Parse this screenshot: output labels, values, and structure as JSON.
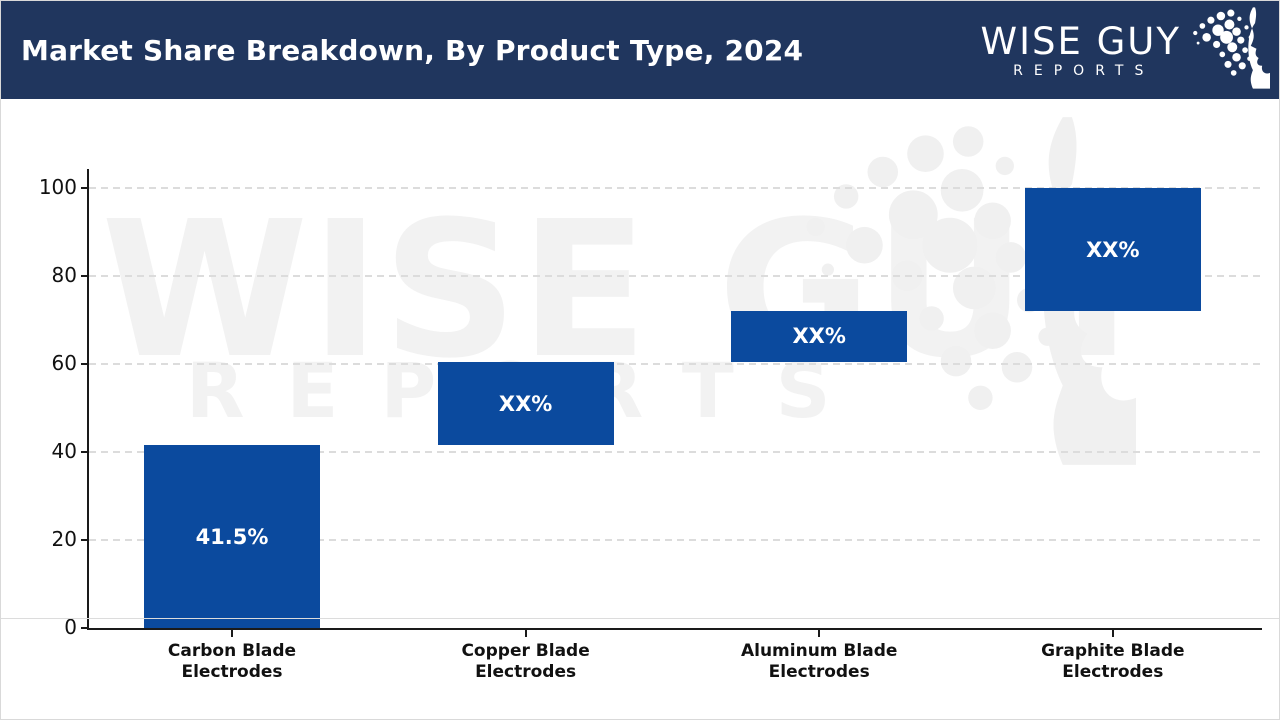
{
  "header": {
    "title": "Market Share Breakdown, By Product Type, 2024",
    "logo": {
      "line1": "WISE GUY",
      "line2": "REPORTS"
    }
  },
  "watermark": {
    "line1": "WISE GUY",
    "line2": "REPORTS"
  },
  "colors": {
    "header_bg": "#20365e",
    "bar": "#0b4a9e",
    "grid": "#dcdcdc",
    "axis": "#1a1a1a",
    "bar_label_text": "#ffffff",
    "watermark": "#f2f2f2"
  },
  "chart_data": {
    "type": "waterfall",
    "title": "Market Share Breakdown, By Product Type, 2024",
    "categories": [
      "Carbon Blade Electrodes",
      "Copper Blade Electrodes",
      "Aluminum Blade Electrodes",
      "Graphite Blade Electrodes"
    ],
    "segments": [
      {
        "category": "Carbon Blade Electrodes",
        "start": 0,
        "end": 41.5,
        "label": "41.5%"
      },
      {
        "category": "Copper Blade Electrodes",
        "start": 41.5,
        "end": 60.5,
        "label": "XX%"
      },
      {
        "category": "Aluminum Blade Electrodes",
        "start": 60.5,
        "end": 72,
        "label": "XX%"
      },
      {
        "category": "Graphite Blade Electrodes",
        "start": 72,
        "end": 100,
        "label": "XX%"
      }
    ],
    "xlabel": "",
    "ylabel": "",
    "ylim": [
      0,
      105
    ],
    "yticks": [
      0,
      20,
      40,
      60,
      80,
      100
    ],
    "grid": "horizontal-dashed",
    "legend": "none",
    "bar_color": "#0b4a9e"
  }
}
